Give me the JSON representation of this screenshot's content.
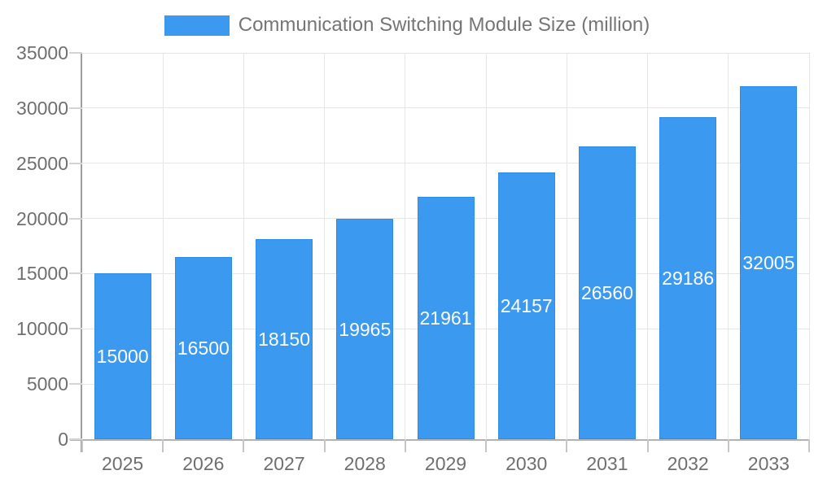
{
  "legend": {
    "label": "Communication Switching Module Size (million)"
  },
  "chart_data": {
    "type": "bar",
    "title": "Communication Switching Module Size (million)",
    "categories": [
      "2025",
      "2026",
      "2027",
      "2028",
      "2029",
      "2030",
      "2031",
      "2032",
      "2033"
    ],
    "values": [
      15000,
      16500,
      18150,
      19965,
      21961,
      24157,
      26560,
      29186,
      32005
    ],
    "series": [
      {
        "name": "Communication Switching Module Size (million)",
        "values": [
          15000,
          16500,
          18150,
          19965,
          21961,
          24157,
          26560,
          29186,
          32005
        ]
      }
    ],
    "xlabel": "",
    "ylabel": "",
    "ylim": [
      0,
      35000
    ],
    "yticks": [
      0,
      5000,
      10000,
      15000,
      20000,
      25000,
      30000,
      35000
    ],
    "grid": true,
    "legend_position": "top",
    "value_labels": "inside-center",
    "colors": {
      "bar": "#3b9af0",
      "bar_border": "#2d8ce4",
      "value_label_text": "#ffffff",
      "axis_text": "#6f6f6f",
      "legend_text": "#757575",
      "gridline": "#e6e6e6",
      "axis_line": "#9e9e9e"
    }
  }
}
